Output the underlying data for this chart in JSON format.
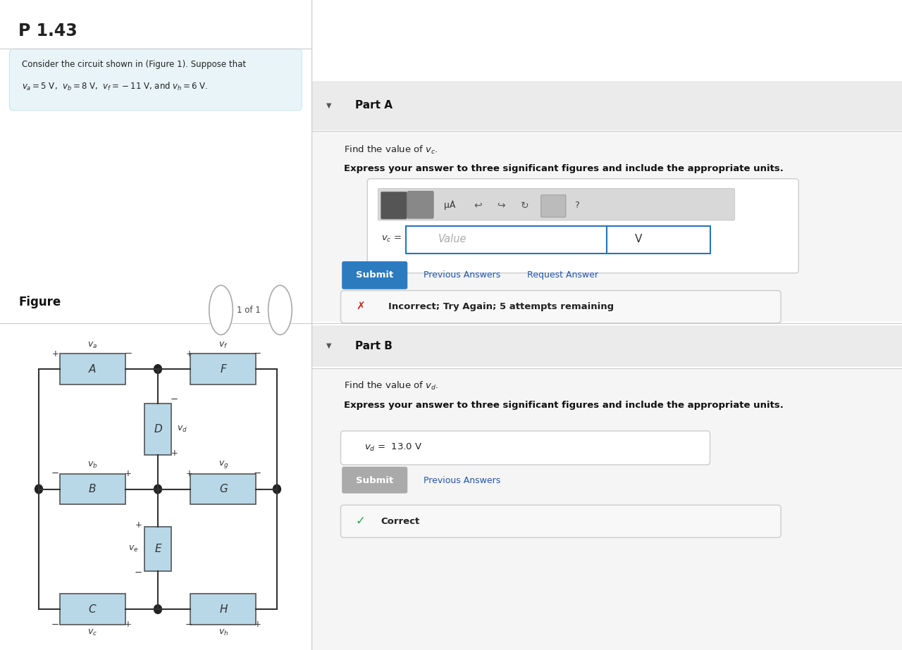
{
  "title": "P 1.43",
  "problem_text": "Consider the circuit shown in (Figure 1). Suppose that",
  "problem_math": "$v_a = 5$ V, $v_b = 8$ V, $v_f = -11$ V, and $v_h = 6$ V.",
  "figure_label": "Figure",
  "figure_nav": "1 of 1",
  "part_a_label": "Part A",
  "part_a_find": "Find the value of $v_c$.",
  "part_a_express": "Express your answer to three significant figures and include the appropriate units.",
  "part_a_vc_label": "$v_c$ =",
  "part_a_value_placeholder": "Value",
  "part_a_unit": "V",
  "submit_text": "Submit",
  "prev_answers": "Previous Answers",
  "req_answer": "Request Answer",
  "incorrect_msg": "Incorrect; Try Again; 5 attempts remaining",
  "part_b_label": "Part B",
  "part_b_find": "Find the value of $v_d$.",
  "part_b_express": "Express your answer to three significant figures and include the appropriate units.",
  "part_b_answer": "$v_d$ =  13.0 V",
  "part_b_submit": "Submit",
  "part_b_prev": "Previous Answers",
  "correct_msg": "Correct",
  "bg_color": "#ffffff",
  "left_panel_bg": "#f8f8f8",
  "problem_box_bg": "#e8f4f8",
  "part_header_bg": "#e8e8e8",
  "part_content_bg": "#f0f0f0",
  "component_fill": "#b8d8e8",
  "component_stroke": "#555555",
  "wire_color": "#333333",
  "dot_color": "#222222",
  "submit_bg": "#2d7bbf",
  "submit_text_color": "#ffffff",
  "incorrect_border": "#cccccc",
  "correct_check_color": "#22aa44",
  "incorrect_x_color": "#cc2222",
  "link_color": "#2255aa",
  "divider_color": "#cccccc"
}
